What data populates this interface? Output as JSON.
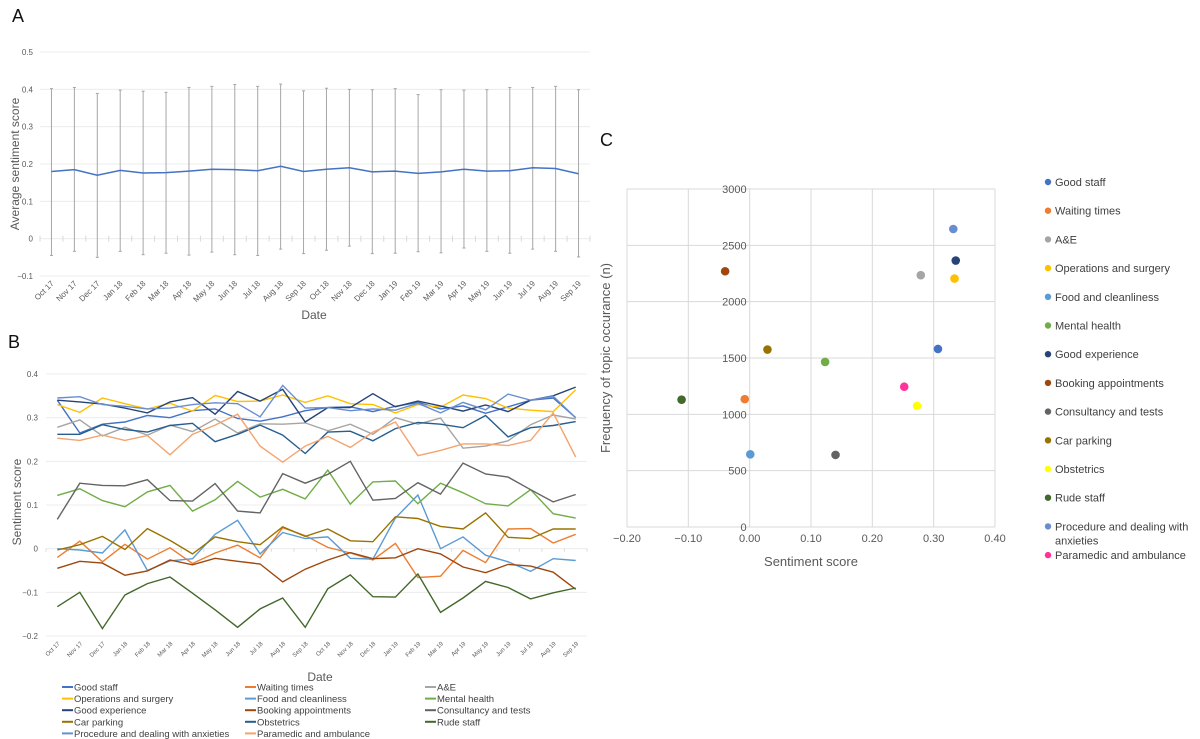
{
  "panels": {
    "a": "A",
    "b": "B",
    "c": "C"
  },
  "months": [
    "Oct 17",
    "Nov 17",
    "Dec 17",
    "Jan 18",
    "Feb 18",
    "Mar 18",
    "Apr 18",
    "May 18",
    "Jun 18",
    "Jul 18",
    "Aug 18",
    "Sep 18",
    "Oct 18",
    "Nov 18",
    "Dec 18",
    "Jan 19",
    "Feb 19",
    "Mar 19",
    "Apr 19",
    "May 19",
    "Jun 19",
    "Jul 19",
    "Aug 19",
    "Sep 19"
  ],
  "chart_data": [
    {
      "id": "A",
      "type": "line",
      "title": "",
      "xlabel": "Date",
      "ylabel": "Average sentiment score",
      "ylim": [
        -0.1,
        0.5
      ],
      "yticks": [
        -0.1,
        0,
        0.1,
        0.2,
        0.3,
        0.4,
        0.5
      ],
      "ytick_labels": [
        "−0.1",
        "0",
        "0.1",
        "0.2",
        "0.3",
        "0.4",
        "0.5"
      ],
      "grid": true,
      "color": "#4472C4",
      "series": [
        {
          "name": "Average sentiment",
          "values": [
            0.18,
            0.185,
            0.17,
            0.183,
            0.176,
            0.177,
            0.181,
            0.186,
            0.185,
            0.182,
            0.194,
            0.18,
            0.186,
            0.19,
            0.179,
            0.181,
            0.175,
            0.179,
            0.186,
            0.181,
            0.182,
            0.19,
            0.188,
            0.174
          ],
          "error_upper": [
            0.402,
            0.405,
            0.389,
            0.398,
            0.395,
            0.392,
            0.405,
            0.408,
            0.413,
            0.408,
            0.414,
            0.396,
            0.403,
            0.4,
            0.399,
            0.402,
            0.386,
            0.399,
            0.398,
            0.399,
            0.405,
            0.405,
            0.408,
            0.399
          ],
          "error_lower": [
            -0.045,
            -0.034,
            -0.05,
            -0.034,
            -0.043,
            -0.039,
            -0.044,
            -0.036,
            -0.043,
            -0.045,
            -0.028,
            -0.04,
            -0.031,
            -0.02,
            -0.04,
            -0.039,
            -0.035,
            -0.038,
            -0.025,
            -0.034,
            -0.039,
            -0.028,
            -0.034,
            -0.049
          ]
        }
      ]
    },
    {
      "id": "B",
      "type": "line",
      "title": "",
      "xlabel": "Date",
      "ylabel": "Sentiment score",
      "ylim": [
        -0.2,
        0.4
      ],
      "yticks": [
        -0.2,
        -0.1,
        0,
        0.1,
        0.2,
        0.3,
        0.4
      ],
      "ytick_labels": [
        "−0.2",
        "−0.1",
        "0",
        "0.1",
        "0.2",
        "0.3",
        "0.4"
      ],
      "grid": true,
      "legend": "bottom",
      "series": [
        {
          "name": "Good staff",
          "color": "#4472C4",
          "values": [
            0.34,
            0.265,
            0.285,
            0.29,
            0.305,
            0.3,
            0.316,
            0.32,
            0.298,
            0.292,
            0.302,
            0.316,
            0.323,
            0.325,
            0.314,
            0.326,
            0.335,
            0.32,
            0.327,
            0.31,
            0.325,
            0.34,
            0.345,
            0.3
          ]
        },
        {
          "name": "Waiting times",
          "color": "#ED7D31",
          "values": [
            -0.02,
            0.017,
            -0.03,
            0.01,
            -0.024,
            0.002,
            -0.034,
            -0.01,
            0.008,
            -0.021,
            0.048,
            0.03,
            0.003,
            -0.01,
            -0.026,
            0.012,
            -0.066,
            -0.063,
            -0.004,
            -0.032,
            0.045,
            0.046,
            0.013,
            0.033
          ]
        },
        {
          "name": "A&E",
          "color": "#A5A5A5",
          "values": [
            0.278,
            0.295,
            0.258,
            0.278,
            0.26,
            0.283,
            0.268,
            0.297,
            0.265,
            0.286,
            0.285,
            0.288,
            0.27,
            0.285,
            0.262,
            0.3,
            0.285,
            0.299,
            0.23,
            0.235,
            0.247,
            0.284,
            0.306,
            0.297
          ]
        },
        {
          "name": "Operations and surgery",
          "color": "#FFC000",
          "values": [
            0.33,
            0.312,
            0.345,
            0.332,
            0.32,
            0.333,
            0.315,
            0.351,
            0.337,
            0.338,
            0.352,
            0.335,
            0.35,
            0.332,
            0.33,
            0.311,
            0.33,
            0.324,
            0.352,
            0.344,
            0.322,
            0.317,
            0.314,
            0.364
          ]
        },
        {
          "name": "Food and cleanliness",
          "color": "#5B9BD5",
          "values": [
            0.0,
            -0.003,
            -0.01,
            0.043,
            -0.05,
            -0.028,
            -0.023,
            0.033,
            0.065,
            -0.012,
            0.037,
            0.023,
            0.027,
            -0.022,
            -0.024,
            0.07,
            0.123,
            0.0,
            0.027,
            -0.015,
            -0.03,
            -0.052,
            -0.023,
            -0.027
          ]
        },
        {
          "name": "Mental health",
          "color": "#70AD47",
          "values": [
            0.122,
            0.137,
            0.11,
            0.096,
            0.13,
            0.145,
            0.086,
            0.112,
            0.154,
            0.118,
            0.136,
            0.114,
            0.18,
            0.102,
            0.153,
            0.155,
            0.103,
            0.15,
            0.128,
            0.103,
            0.098,
            0.135,
            0.08,
            0.07
          ]
        },
        {
          "name": "Good experience",
          "color": "#264478",
          "values": [
            0.34,
            0.336,
            0.331,
            0.322,
            0.311,
            0.336,
            0.346,
            0.308,
            0.36,
            0.338,
            0.365,
            0.29,
            0.323,
            0.323,
            0.355,
            0.325,
            0.338,
            0.327,
            0.315,
            0.329,
            0.314,
            0.34,
            0.35,
            0.37
          ]
        },
        {
          "name": "Booking appointments",
          "color": "#9E480E",
          "values": [
            -0.045,
            -0.029,
            -0.033,
            -0.061,
            -0.051,
            -0.026,
            -0.037,
            -0.022,
            -0.029,
            -0.035,
            -0.076,
            -0.047,
            -0.026,
            -0.009,
            -0.023,
            -0.021,
            0.0,
            -0.012,
            -0.042,
            -0.055,
            -0.036,
            -0.04,
            -0.054,
            -0.093
          ]
        },
        {
          "name": "Consultancy and tests",
          "color": "#636363",
          "values": [
            0.067,
            0.15,
            0.145,
            0.144,
            0.158,
            0.11,
            0.109,
            0.149,
            0.086,
            0.082,
            0.172,
            0.15,
            0.17,
            0.2,
            0.111,
            0.115,
            0.151,
            0.125,
            0.196,
            0.171,
            0.164,
            0.135,
            0.107,
            0.124
          ]
        },
        {
          "name": "Car parking",
          "color": "#997300",
          "values": [
            -0.003,
            0.009,
            0.028,
            -0.002,
            0.046,
            0.019,
            -0.012,
            0.027,
            0.016,
            0.009,
            0.05,
            0.028,
            0.045,
            0.018,
            0.016,
            0.073,
            0.069,
            0.051,
            0.045,
            0.082,
            0.026,
            0.023,
            0.045,
            0.045
          ]
        },
        {
          "name": "Obstetrics",
          "color": "#255E91",
          "values": [
            0.262,
            0.262,
            0.284,
            0.273,
            0.267,
            0.282,
            0.287,
            0.245,
            0.262,
            0.283,
            0.26,
            0.218,
            0.267,
            0.269,
            0.247,
            0.275,
            0.289,
            0.285,
            0.277,
            0.305,
            0.256,
            0.277,
            0.282,
            0.291
          ]
        },
        {
          "name": "Rude staff",
          "color": "#43682B",
          "values": [
            -0.133,
            -0.1,
            -0.183,
            -0.106,
            -0.08,
            -0.065,
            -0.102,
            -0.14,
            -0.18,
            -0.138,
            -0.113,
            -0.18,
            -0.092,
            -0.06,
            -0.11,
            -0.111,
            -0.058,
            -0.146,
            -0.113,
            -0.075,
            -0.089,
            -0.115,
            -0.101,
            -0.09
          ]
        },
        {
          "name": "Procedure and dealing with anxieties",
          "color": "#698ED0",
          "values": [
            0.345,
            0.348,
            0.33,
            0.326,
            0.32,
            0.322,
            0.33,
            0.334,
            0.332,
            0.302,
            0.374,
            0.322,
            0.323,
            0.316,
            0.32,
            0.317,
            0.333,
            0.311,
            0.335,
            0.318,
            0.354,
            0.34,
            0.349,
            0.3
          ]
        },
        {
          "name": "Paramedic and ambulance",
          "color": "#F4A46E",
          "values": [
            0.253,
            0.248,
            0.26,
            0.248,
            0.259,
            0.215,
            0.262,
            0.283,
            0.308,
            0.235,
            0.198,
            0.235,
            0.257,
            0.232,
            0.267,
            0.29,
            0.213,
            0.225,
            0.24,
            0.24,
            0.236,
            0.248,
            0.311,
            0.21
          ]
        }
      ]
    },
    {
      "id": "C",
      "type": "scatter",
      "title": "",
      "xlabel": "Sentiment score",
      "ylabel": "Frequency of topic occurance (n)",
      "xlim": [
        -0.2,
        0.4
      ],
      "ylim": [
        0,
        3000
      ],
      "xticks": [
        -0.2,
        -0.1,
        0,
        0.1,
        0.2,
        0.3,
        0.4
      ],
      "xtick_labels": [
        "−0.20",
        "−0.10",
        "0.00",
        "0.10",
        "0.20",
        "0.30",
        "0.40"
      ],
      "yticks": [
        0,
        500,
        1000,
        1500,
        2000,
        2500,
        3000
      ],
      "ytick_labels": [
        "0",
        "500",
        "1000",
        "1500",
        "2000",
        "2500",
        "3000"
      ],
      "grid": true,
      "legend": "right",
      "points": [
        {
          "name": "Good staff",
          "color": "#4472C4",
          "x": 0.307,
          "y": 1580
        },
        {
          "name": "Waiting times",
          "color": "#ED7D31",
          "x": -0.008,
          "y": 1135
        },
        {
          "name": "A&E",
          "color": "#A5A5A5",
          "x": 0.279,
          "y": 2235
        },
        {
          "name": "Operations and surgery",
          "color": "#FFC000",
          "x": 0.334,
          "y": 2205
        },
        {
          "name": "Food and cleanliness",
          "color": "#5B9BD5",
          "x": 0.001,
          "y": 645
        },
        {
          "name": "Mental health",
          "color": "#70AD47",
          "x": 0.123,
          "y": 1465
        },
        {
          "name": "Good experience",
          "color": "#264478",
          "x": 0.336,
          "y": 2365
        },
        {
          "name": "Booking appointments",
          "color": "#9E480E",
          "x": -0.04,
          "y": 2270
        },
        {
          "name": "Consultancy and tests",
          "color": "#636363",
          "x": 0.14,
          "y": 640
        },
        {
          "name": "Car parking",
          "color": "#997300",
          "x": 0.029,
          "y": 1575
        },
        {
          "name": "Obstetrics",
          "color": "#FFFF00",
          "x": 0.273,
          "y": 1075
        },
        {
          "name": "Rude staff",
          "color": "#43682B",
          "x": -0.111,
          "y": 1130
        },
        {
          "name": "Procedure and dealing with anxieties",
          "color": "#698ED0",
          "x": 0.332,
          "y": 2645
        },
        {
          "name": "Paramedic and ambulance",
          "color": "#FF3399",
          "x": 0.252,
          "y": 1245
        }
      ],
      "legend_labels": [
        [
          "Good staff"
        ],
        [
          "Waiting times"
        ],
        [
          "A&E"
        ],
        [
          "Operations and surgery"
        ],
        [
          "Food and cleanliness"
        ],
        [
          "Mental health"
        ],
        [
          "Good experience"
        ],
        [
          "Booking appointments"
        ],
        [
          "Consultancy and tests"
        ],
        [
          "Car parking"
        ],
        [
          "Obstetrics"
        ],
        [
          "Rude staff"
        ],
        [
          "Procedure and dealing with",
          "anxieties"
        ],
        [
          "Paramedic and ambulance"
        ]
      ]
    }
  ]
}
